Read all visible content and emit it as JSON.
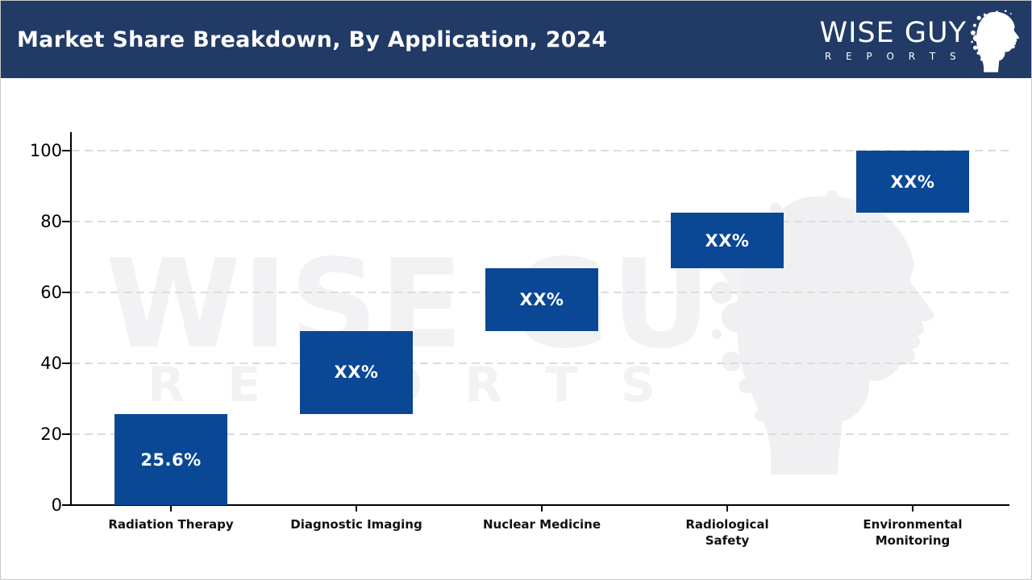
{
  "header": {
    "title": "Market Share Breakdown, By Application, 2024",
    "brand": {
      "name_line": "WISE GUY",
      "sub_line": "R E P O R T S"
    }
  },
  "watermark": {
    "name_line": "WISE GUY",
    "sub_line": "R E P O R T S"
  },
  "colors": {
    "header_bg": "#213a66",
    "bar": "#0a4795",
    "bar_label": "#ffffff",
    "axis": "#000000",
    "grid": "#dcdcdc",
    "watermark": "#f2f2f5"
  },
  "chart_data": {
    "type": "bar",
    "variant": "waterfall",
    "title": "Market Share Breakdown, By Application, 2024",
    "categories": [
      "Radiation Therapy",
      "Diagnostic Imaging",
      "Nuclear Medicine",
      "Radiological\nSafety",
      "Environmental\nMonitoring"
    ],
    "segments": [
      {
        "category": "Radiation Therapy",
        "start": 0,
        "end": 25.6,
        "label": "25.6%"
      },
      {
        "category": "Diagnostic Imaging",
        "start": 25.6,
        "end": 49.2,
        "label": "XX%"
      },
      {
        "category": "Nuclear Medicine",
        "start": 49.2,
        "end": 66.8,
        "label": "XX%"
      },
      {
        "category": "Radiological Safety",
        "start": 66.8,
        "end": 82.5,
        "label": "XX%"
      },
      {
        "category": "Environmental Monitoring",
        "start": 82.5,
        "end": 100,
        "label": "XX%"
      }
    ],
    "xlabel": "",
    "ylabel": "",
    "yticks": [
      0,
      20,
      40,
      60,
      80,
      100
    ],
    "ylim": [
      0,
      105
    ],
    "grid": true,
    "legend": false
  }
}
